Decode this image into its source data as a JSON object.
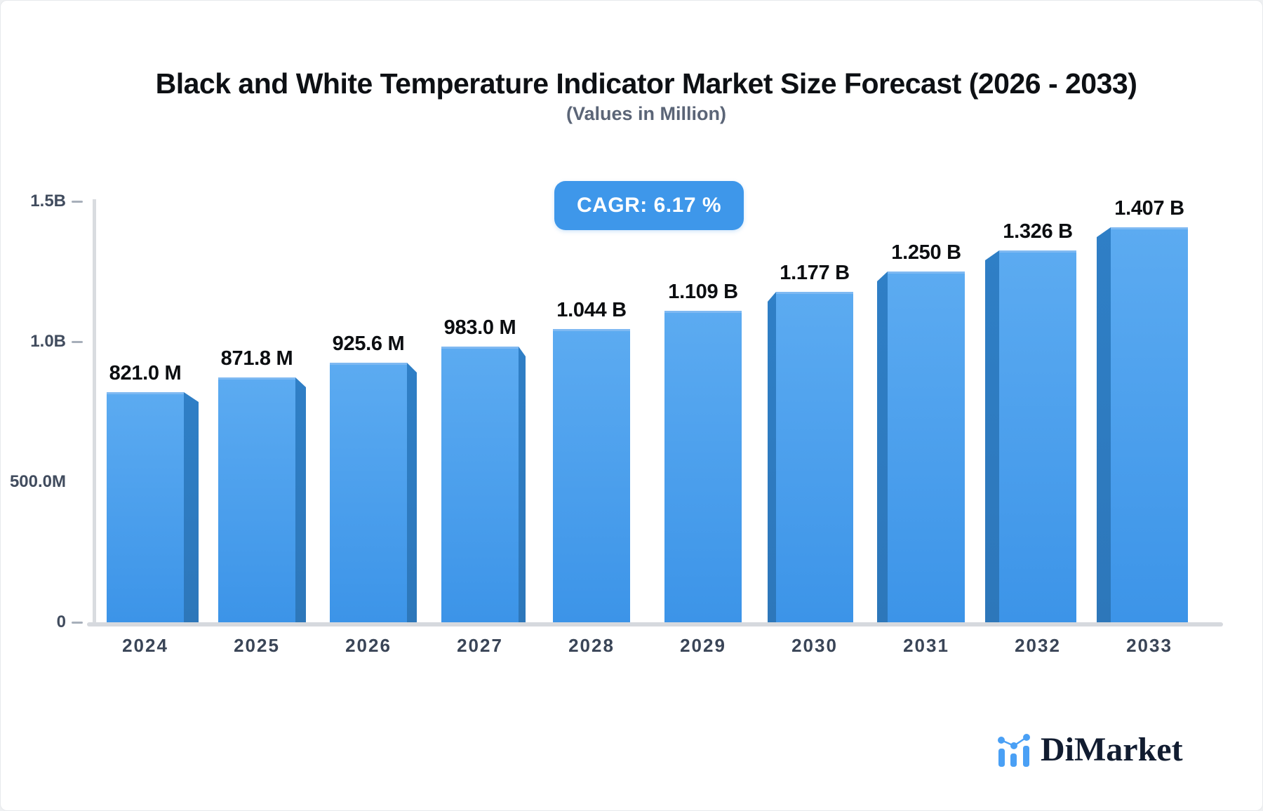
{
  "title": "Black and White Temperature Indicator Market Size Forecast (2026 - 2033)",
  "subtitle": "(Values in Million)",
  "badge": {
    "label": "CAGR: 6.17 %"
  },
  "logo": {
    "text": "DiMarket"
  },
  "chart_data": {
    "type": "bar",
    "title": "Black and White Temperature Indicator Market Size Forecast (2026 - 2033)",
    "subtitle": "(Values in Million)",
    "categories": [
      "2024",
      "2025",
      "2026",
      "2027",
      "2028",
      "2029",
      "2030",
      "2031",
      "2032",
      "2033"
    ],
    "values_millions": [
      821.0,
      871.8,
      925.6,
      983.0,
      1044,
      1109,
      1177,
      1250,
      1326,
      1407
    ],
    "bar_labels": [
      "821.0 M",
      "871.8 M",
      "925.6 M",
      "983.0 M",
      "1.044 B",
      "1.109 B",
      "1.177 B",
      "1.250 B",
      "1.326 B",
      "1.407 B"
    ],
    "cagr_percent": 6.17,
    "ylim_millions": [
      0,
      1500
    ],
    "y_ticks": [
      {
        "label": "1.5B",
        "value": 1500,
        "dash": true
      },
      {
        "label": "1.0B",
        "value": 1000,
        "dash": true
      },
      {
        "label": "500.0M",
        "value": 500,
        "dash": false
      },
      {
        "label": "0",
        "value": 0,
        "dash": true
      }
    ],
    "grid": false,
    "legend": "none",
    "colors": {
      "bar_face_top": "#5cabf1",
      "bar_face_bottom": "#3c94e8",
      "bar_top_highlight": "#7fb9f2",
      "bar_side": "#2e7bc0",
      "badge_bg": "#3e97ea",
      "axis_line": "#d9dce0",
      "tick_text": "#414c5e",
      "category_text": "#3a4557",
      "value_text": "#0c0e11",
      "logo_blue": "#4aa0f5",
      "logo_navy": "#111c30"
    }
  }
}
